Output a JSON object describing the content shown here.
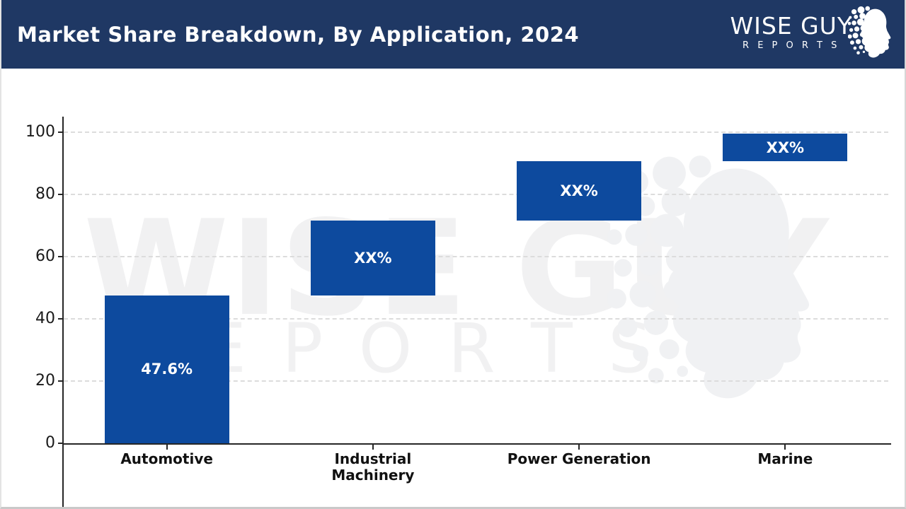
{
  "header": {
    "title": "Market Share Breakdown, By Application, 2024",
    "logo_line1": "WISE GUY",
    "logo_line2": "R E P O R T S"
  },
  "watermark": {
    "big_text": "WISE GUY",
    "small_text": "R E P O R T S"
  },
  "chart_data": {
    "type": "bar",
    "variant": "waterfall",
    "title": "Market Share Breakdown, By Application, 2024",
    "categories": [
      "Automotive",
      "Industrial Machinery",
      "Power Generation",
      "Marine"
    ],
    "x_tick_labels": [
      "Automotive",
      "Industrial\nMachinery",
      "Power Generation",
      "Marine"
    ],
    "segments": [
      {
        "category": "Automotive",
        "start": 0,
        "end": 47.6,
        "label": "47.6%"
      },
      {
        "category": "Industrial Machinery",
        "start": 47.6,
        "end": 71.6,
        "label": "XX%"
      },
      {
        "category": "Power Generation",
        "start": 71.6,
        "end": 90.6,
        "label": "XX%"
      },
      {
        "category": "Marine",
        "start": 90.6,
        "end": 99.6,
        "label": "XX%"
      }
    ],
    "yticks": [
      0,
      20,
      40,
      60,
      80,
      100
    ],
    "ylim": [
      0,
      105
    ],
    "xlabel": "",
    "ylabel": "",
    "grid": "horizontal-dashed",
    "legend": "none",
    "colors": {
      "bar": "#0d4a9e",
      "bar_label": "#ffffff",
      "header_bg": "#1f3864",
      "grid": "#dcdcdc",
      "axis": "#262626",
      "watermark": "#f1f1f2"
    }
  }
}
